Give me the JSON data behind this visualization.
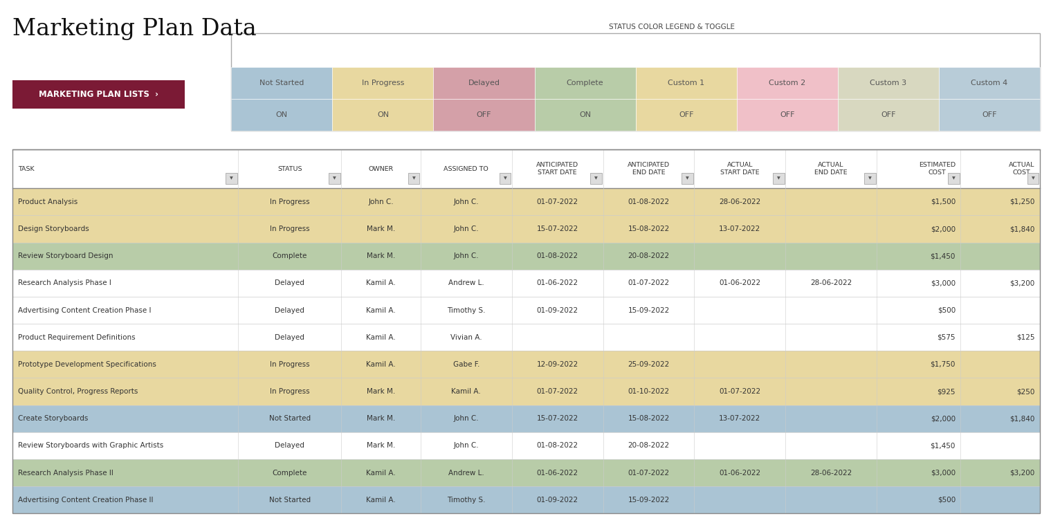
{
  "title": "Marketing Plan Data",
  "button_text": "MARKETING PLAN LISTS  ›",
  "button_bg": "#7b1a35",
  "button_fg": "#ffffff",
  "legend_title": "STATUS COLOR LEGEND & TOGGLE",
  "legend_items": [
    {
      "label": "Not Started",
      "toggle": "ON",
      "label_color": "#aac4d4",
      "toggle_color": "#aac4d4"
    },
    {
      "label": "In Progress",
      "toggle": "ON",
      "label_color": "#e8d8a0",
      "toggle_color": "#e8d8a0"
    },
    {
      "label": "Delayed",
      "toggle": "OFF",
      "label_color": "#d4a0a8",
      "toggle_color": "#d4a0a8"
    },
    {
      "label": "Complete",
      "toggle": "ON",
      "label_color": "#b8cca8",
      "toggle_color": "#b8cca8"
    },
    {
      "label": "Custom 1",
      "toggle": "OFF",
      "label_color": "#e8d8a0",
      "toggle_color": "#e8d8a0"
    },
    {
      "label": "Custom 2",
      "toggle": "OFF",
      "label_color": "#f0c0c8",
      "toggle_color": "#f0c0c8"
    },
    {
      "label": "Custom 3",
      "toggle": "OFF",
      "label_color": "#d8d8c0",
      "toggle_color": "#d8d8c0"
    },
    {
      "label": "Custom 4",
      "toggle": "OFF",
      "label_color": "#b8ccd8",
      "toggle_color": "#b8ccd8"
    }
  ],
  "col_headers": [
    "TASK",
    "STATUS",
    "OWNER",
    "ASSIGNED TO",
    "ANTICIPATED\nSTART DATE",
    "ANTICIPATED\nEND DATE",
    "ACTUAL\nSTART DATE",
    "ACTUAL\nEND DATE",
    "ESTIMATED\nCOST",
    "ACTUAL\nCOST"
  ],
  "rows": [
    {
      "task": "Product Analysis",
      "status": "In Progress",
      "owner": "John C.",
      "assigned": "John C.",
      "ant_start": "01-07-2022",
      "ant_end": "01-08-2022",
      "act_start": "28-06-2022",
      "act_end": "",
      "est_cost": "$1,500",
      "act_cost": "$1,250",
      "row_color": "#e8d8a0"
    },
    {
      "task": "Design Storyboards",
      "status": "In Progress",
      "owner": "Mark M.",
      "assigned": "John C.",
      "ant_start": "15-07-2022",
      "ant_end": "15-08-2022",
      "act_start": "13-07-2022",
      "act_end": "",
      "est_cost": "$2,000",
      "act_cost": "$1,840",
      "row_color": "#e8d8a0"
    },
    {
      "task": "Review Storyboard Design",
      "status": "Complete",
      "owner": "Mark M.",
      "assigned": "John C.",
      "ant_start": "01-08-2022",
      "ant_end": "20-08-2022",
      "act_start": "",
      "act_end": "",
      "est_cost": "$1,450",
      "act_cost": "",
      "row_color": "#b8cca8"
    },
    {
      "task": "Research Analysis Phase I",
      "status": "Delayed",
      "owner": "Kamil A.",
      "assigned": "Andrew L.",
      "ant_start": "01-06-2022",
      "ant_end": "01-07-2022",
      "act_start": "01-06-2022",
      "act_end": "28-06-2022",
      "est_cost": "$3,000",
      "act_cost": "$3,200",
      "row_color": "#ffffff"
    },
    {
      "task": "Advertising Content Creation Phase I",
      "status": "Delayed",
      "owner": "Kamil A.",
      "assigned": "Timothy S.",
      "ant_start": "01-09-2022",
      "ant_end": "15-09-2022",
      "act_start": "",
      "act_end": "",
      "est_cost": "$500",
      "act_cost": "",
      "row_color": "#ffffff"
    },
    {
      "task": "Product Requirement Definitions",
      "status": "Delayed",
      "owner": "Kamil A.",
      "assigned": "Vivian A.",
      "ant_start": "",
      "ant_end": "",
      "act_start": "",
      "act_end": "",
      "est_cost": "$575",
      "act_cost": "$125",
      "row_color": "#ffffff"
    },
    {
      "task": "Prototype Development Specifications",
      "status": "In Progress",
      "owner": "Kamil A.",
      "assigned": "Gabe F.",
      "ant_start": "12-09-2022",
      "ant_end": "25-09-2022",
      "act_start": "",
      "act_end": "",
      "est_cost": "$1,750",
      "act_cost": "",
      "row_color": "#e8d8a0"
    },
    {
      "task": "Quality Control, Progress Reports",
      "status": "In Progress",
      "owner": "Mark M.",
      "assigned": "Kamil A.",
      "ant_start": "01-07-2022",
      "ant_end": "01-10-2022",
      "act_start": "01-07-2022",
      "act_end": "",
      "est_cost": "$925",
      "act_cost": "$250",
      "row_color": "#e8d8a0"
    },
    {
      "task": "Create Storyboards",
      "status": "Not Started",
      "owner": "Mark M.",
      "assigned": "John C.",
      "ant_start": "15-07-2022",
      "ant_end": "15-08-2022",
      "act_start": "13-07-2022",
      "act_end": "",
      "est_cost": "$2,000",
      "act_cost": "$1,840",
      "row_color": "#aac4d4"
    },
    {
      "task": "Review Storyboards with Graphic Artists",
      "status": "Delayed",
      "owner": "Mark M.",
      "assigned": "John C.",
      "ant_start": "01-08-2022",
      "ant_end": "20-08-2022",
      "act_start": "",
      "act_end": "",
      "est_cost": "$1,450",
      "act_cost": "",
      "row_color": "#ffffff"
    },
    {
      "task": "Research Analysis Phase II",
      "status": "Complete",
      "owner": "Kamil A.",
      "assigned": "Andrew L.",
      "ant_start": "01-06-2022",
      "ant_end": "01-07-2022",
      "act_start": "01-06-2022",
      "act_end": "28-06-2022",
      "est_cost": "$3,000",
      "act_cost": "$3,200",
      "row_color": "#b8cca8"
    },
    {
      "task": "Advertising Content Creation Phase II",
      "status": "Not Started",
      "owner": "Kamil A.",
      "assigned": "Timothy S.",
      "ant_start": "01-09-2022",
      "ant_end": "15-09-2022",
      "act_start": "",
      "act_end": "",
      "est_cost": "$500",
      "act_cost": "",
      "row_color": "#aac4d4"
    }
  ],
  "bg_color": "#ffffff",
  "text_color": "#333333",
  "header_text_color": "#333333"
}
